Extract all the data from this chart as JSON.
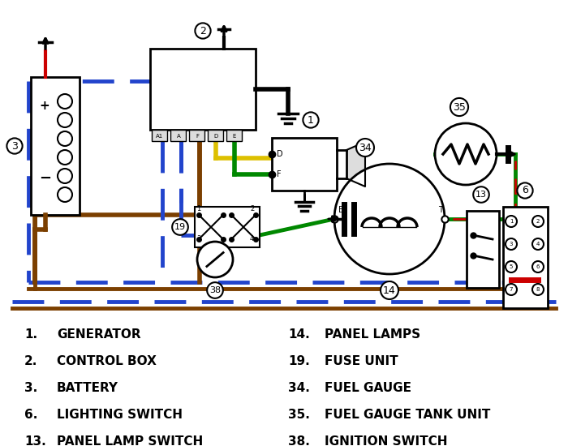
{
  "bg_color": "#ffffff",
  "legend_items_left": [
    {
      "num": "1.",
      "text": "  GENERATOR"
    },
    {
      "num": "2.",
      "text": "  CONTROL BOX"
    },
    {
      "num": "3.",
      "text": "  BATTERY"
    },
    {
      "num": "6.",
      "text": "  LIGHTING SWITCH"
    },
    {
      "num": "13.",
      "text": "PANEL LAMP SWITCH"
    }
  ],
  "legend_items_right": [
    {
      "num": "14.",
      "text": "PANEL LAMPS"
    },
    {
      "num": "19.",
      "text": "FUSE UNIT"
    },
    {
      "num": "34.",
      "text": "FUEL GAUGE"
    },
    {
      "num": "35.",
      "text": "FUEL GAUGE TANK UNIT"
    },
    {
      "num": "38.",
      "text": "IGNITION SWITCH"
    }
  ],
  "colors": {
    "black": "#000000",
    "blue": "#2244cc",
    "brown": "#7B3F00",
    "green": "#008800",
    "yellow": "#DDC000",
    "red": "#cc0000",
    "white": "#ffffff",
    "gray": "#aaaaaa",
    "lgray": "#dddddd"
  }
}
